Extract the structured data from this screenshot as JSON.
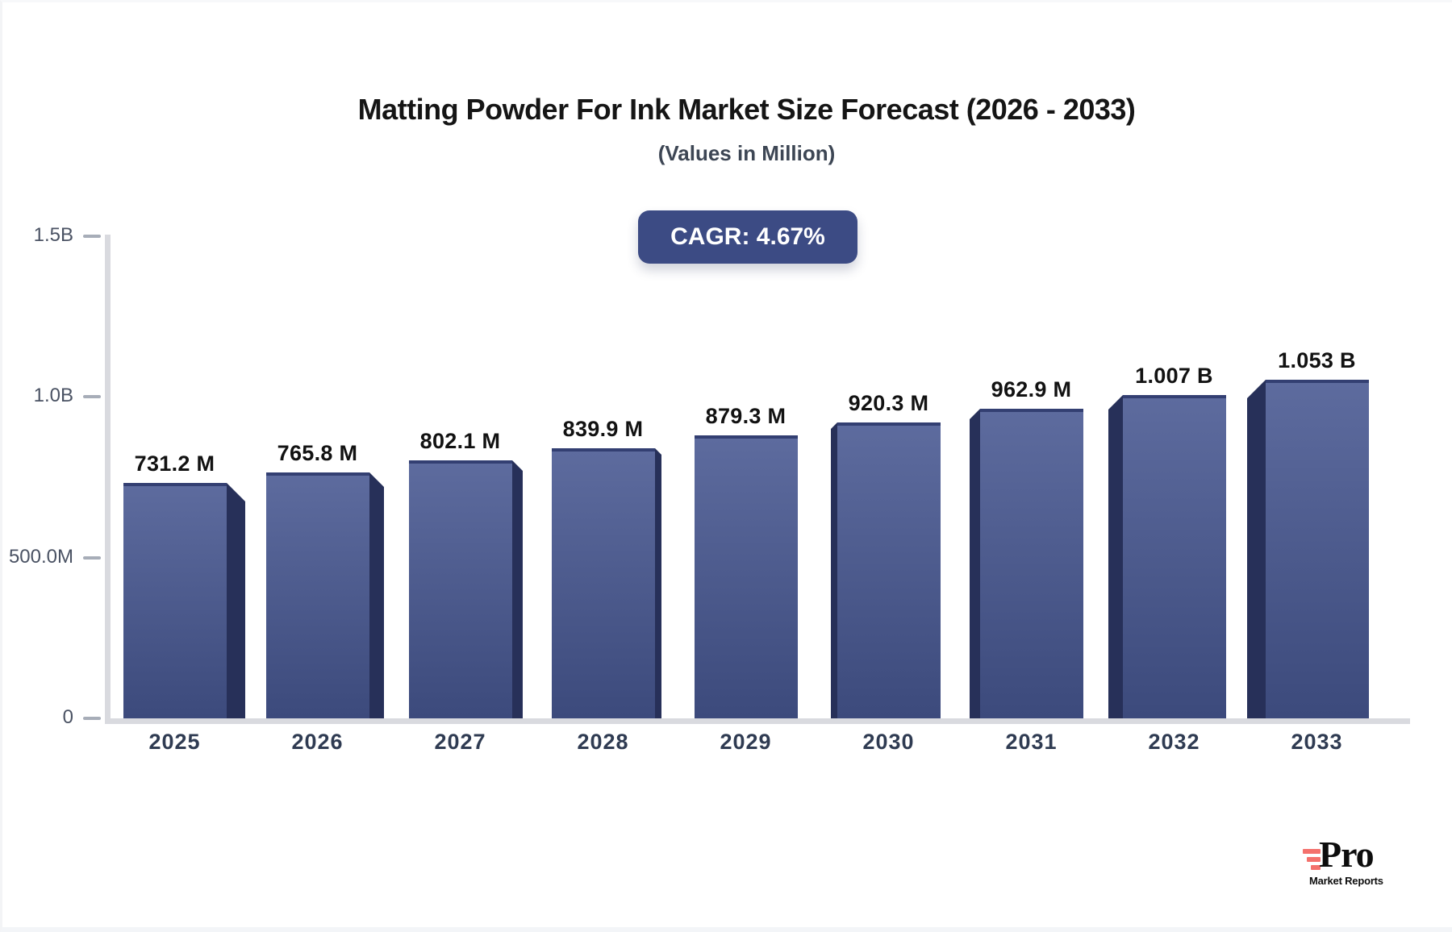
{
  "title": "Matting Powder For Ink Market Size Forecast (2026 - 2033)",
  "subtitle": "(Values in Million)",
  "cagr_badge": "CAGR: 4.67%",
  "chart_data": {
    "type": "bar",
    "title": "Matting Powder For Ink Market Size Forecast (2026 - 2033)",
    "subtitle": "(Values in Million)",
    "xlabel": "",
    "ylabel": "",
    "unit_note": "Values in Million",
    "cagr_percent": 4.67,
    "categories": [
      "2025",
      "2026",
      "2027",
      "2028",
      "2029",
      "2030",
      "2031",
      "2032",
      "2033"
    ],
    "values": [
      731.2,
      765.8,
      802.1,
      839.9,
      879.3,
      920.3,
      962.9,
      1007,
      1053
    ],
    "value_labels": [
      "731.2 M",
      "765.8 M",
      "802.1 M",
      "839.9 M",
      "879.3 M",
      "920.3 M",
      "962.9 M",
      "1.007 B",
      "1.053 B"
    ],
    "ylim": [
      0,
      1500
    ],
    "yticks": [
      {
        "value": 0,
        "label": "0"
      },
      {
        "value": 500,
        "label": "500.0M"
      },
      {
        "value": 1000,
        "label": "1.0B"
      },
      {
        "value": 1500,
        "label": "1.5B"
      }
    ],
    "grid": false,
    "legend": false,
    "colors": {
      "bar_gradient_top": "#5d6b9e",
      "bar_gradient_bottom": "#3c4a7c",
      "bar_top_edge": "#333f72",
      "bar_side_3d": "#273059",
      "axis_line": "#d9dadf",
      "tick_label": "#4a5263",
      "category_label": "#2f3b52",
      "value_label": "#121212",
      "badge_background": "#3c4b84",
      "badge_text": "#ffffff"
    }
  },
  "logo": {
    "name": "Pro",
    "subtext": "Market Reports",
    "accent_color": "#f4716c"
  }
}
